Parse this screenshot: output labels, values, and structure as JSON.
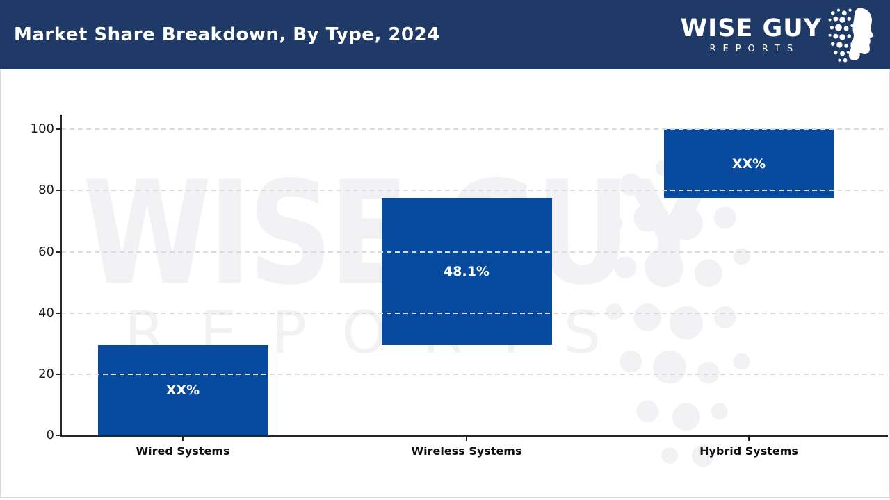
{
  "header": {
    "title": "Market Share Breakdown, By Type, 2024",
    "brand": {
      "line1": "WISE GUY",
      "line2": "REPORTS"
    }
  },
  "watermark": {
    "line1": "WISE GUY",
    "line2": "REPORTS"
  },
  "chart_data": {
    "type": "bar",
    "subtype": "floating-segment-bars",
    "title": "Market Share Breakdown, By Type, 2024",
    "categories": [
      "Wired Systems",
      "Wireless Systems",
      "Hybrid Systems"
    ],
    "bars": [
      {
        "category": "Wired Systems",
        "start": 0,
        "end": 29.5,
        "label": "XX%"
      },
      {
        "category": "Wireless Systems",
        "start": 29.5,
        "end": 77.6,
        "label": "48.1%"
      },
      {
        "category": "Hybrid Systems",
        "start": 77.6,
        "end": 100,
        "label": "XX%"
      }
    ],
    "yticks": [
      0,
      20,
      40,
      60,
      80,
      100
    ],
    "ylim": [
      0,
      105
    ],
    "xlabel": "",
    "ylabel": "",
    "legend": "none",
    "grid": "horizontal-dashed",
    "bar_color": "#084a9e"
  },
  "colors": {
    "header_bg": "#1f3a66",
    "bar": "#084a9e",
    "gridline": "#dcdcdc",
    "watermark": "#f2f2f5"
  }
}
